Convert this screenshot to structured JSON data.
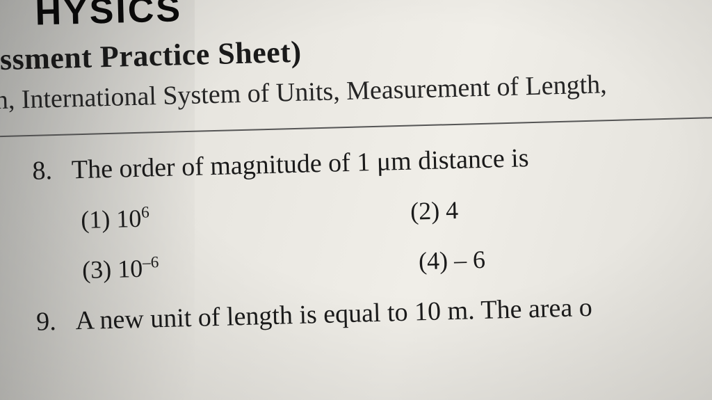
{
  "brand_fragment": "HYSICS",
  "header": {
    "title": "sessment Practice Sheet)",
    "subtitle": "on, International System of Units, Measurement of Length,"
  },
  "questions": {
    "q8": {
      "number": "8.",
      "text": "The order of magnitude of 1 μm distance is",
      "options": {
        "opt1": {
          "label": "(1)",
          "value": "10",
          "sup": "6"
        },
        "opt2": {
          "label": "(2)",
          "value": "4"
        },
        "opt3": {
          "label": "(3)",
          "value": "10",
          "sup": "–6"
        },
        "opt4": {
          "label": "(4)",
          "value": "– 6"
        }
      }
    },
    "q9": {
      "number": "9.",
      "text": "A new unit of length is equal to 10 m. The area o"
    }
  }
}
